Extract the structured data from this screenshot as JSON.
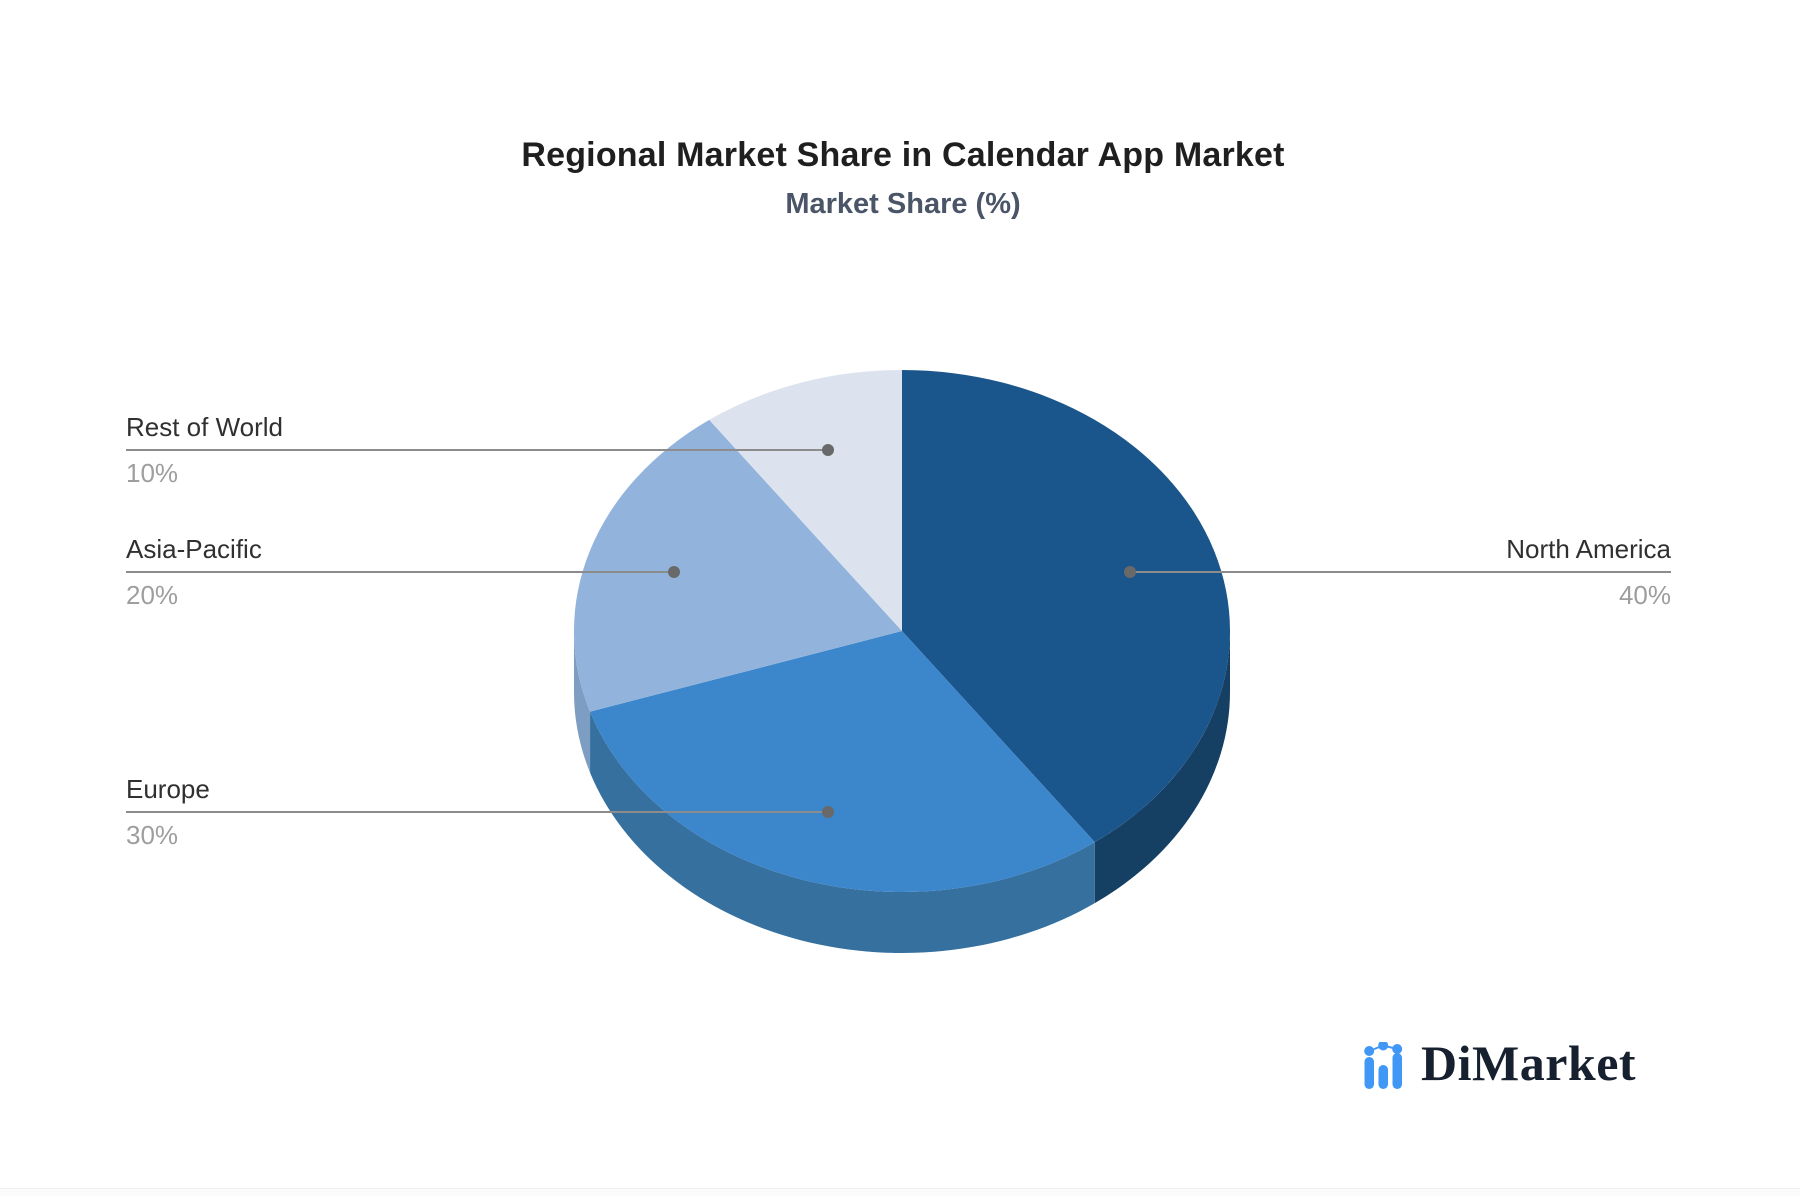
{
  "header": {
    "title": "Regional Market Share in Calendar App Market",
    "subtitle": "Market Share (%)"
  },
  "chart_data": {
    "type": "pie",
    "title": "Regional Market Share in Calendar App Market",
    "subtitle": "Market Share (%)",
    "unit": "%",
    "effect": "3d",
    "start_angle": "12-o-clock",
    "direction": "clockwise",
    "legend": "none",
    "slices": [
      {
        "label": "North America",
        "value": 40,
        "display_value": "40%",
        "color": "#1a568c",
        "side_color": "#153f63",
        "label_side": "right"
      },
      {
        "label": "Europe",
        "value": 30,
        "display_value": "30%",
        "color": "#3c86cc",
        "side_color": "#35709f",
        "label_side": "left"
      },
      {
        "label": "Asia-Pacific",
        "value": 20,
        "display_value": "20%",
        "color": "#92b4dc",
        "side_color": "#7e9dc2",
        "label_side": "left"
      },
      {
        "label": "Rest of World",
        "value": 10,
        "display_value": "10%",
        "color": "#dce3ef",
        "side_color": "#bcc7d9",
        "label_side": "left"
      }
    ],
    "annotation_style": {
      "line_color": "#8c8c8c",
      "dot_color": "#696969",
      "label_color": "#303030",
      "value_color": "#9e9e9e"
    }
  },
  "branding": {
    "logo_icon": "bar-line-chart-icon",
    "logo_text": "DiMarket",
    "logo_text_color": "#17202e",
    "logo_accent_color": "#4197f5"
  }
}
